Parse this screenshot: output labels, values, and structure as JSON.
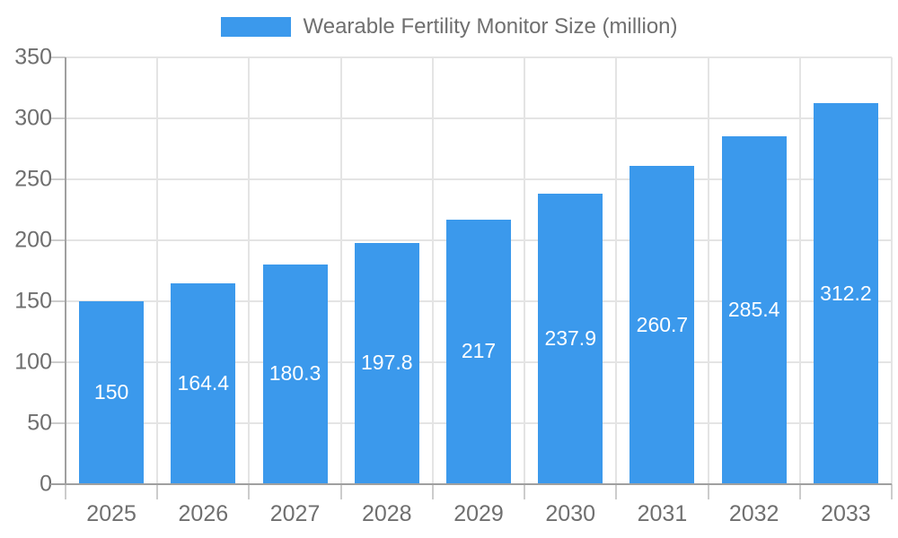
{
  "legend": {
    "label": "Wearable Fertility Monitor Size (million)"
  },
  "colors": {
    "bar": "#3B99EC",
    "bar_label": "#FFFFFF",
    "axis_line": "#A0A0A0",
    "tick": "#CCCCCC",
    "gridline": "#E4E4E4",
    "text": "#6F6F6F",
    "background": "#FFFFFF"
  },
  "chart_data": {
    "type": "bar",
    "title": "Wearable Fertility Monitor Size (million)",
    "categories": [
      "2025",
      "2026",
      "2027",
      "2028",
      "2029",
      "2030",
      "2031",
      "2032",
      "2033"
    ],
    "values": [
      150,
      164.4,
      180.3,
      197.8,
      217,
      237.9,
      260.7,
      285.4,
      312.2
    ],
    "value_labels": [
      "150",
      "164.4",
      "180.3",
      "197.8",
      "217",
      "237.9",
      "260.7",
      "285.4",
      "312.2"
    ],
    "xlabel": "",
    "ylabel": "",
    "ylim": [
      0,
      350
    ],
    "ytick_step": 50,
    "yticks": [
      0,
      50,
      100,
      150,
      200,
      250,
      300,
      350
    ],
    "grid": true,
    "legend_position": "top",
    "value_label_position": "center"
  }
}
